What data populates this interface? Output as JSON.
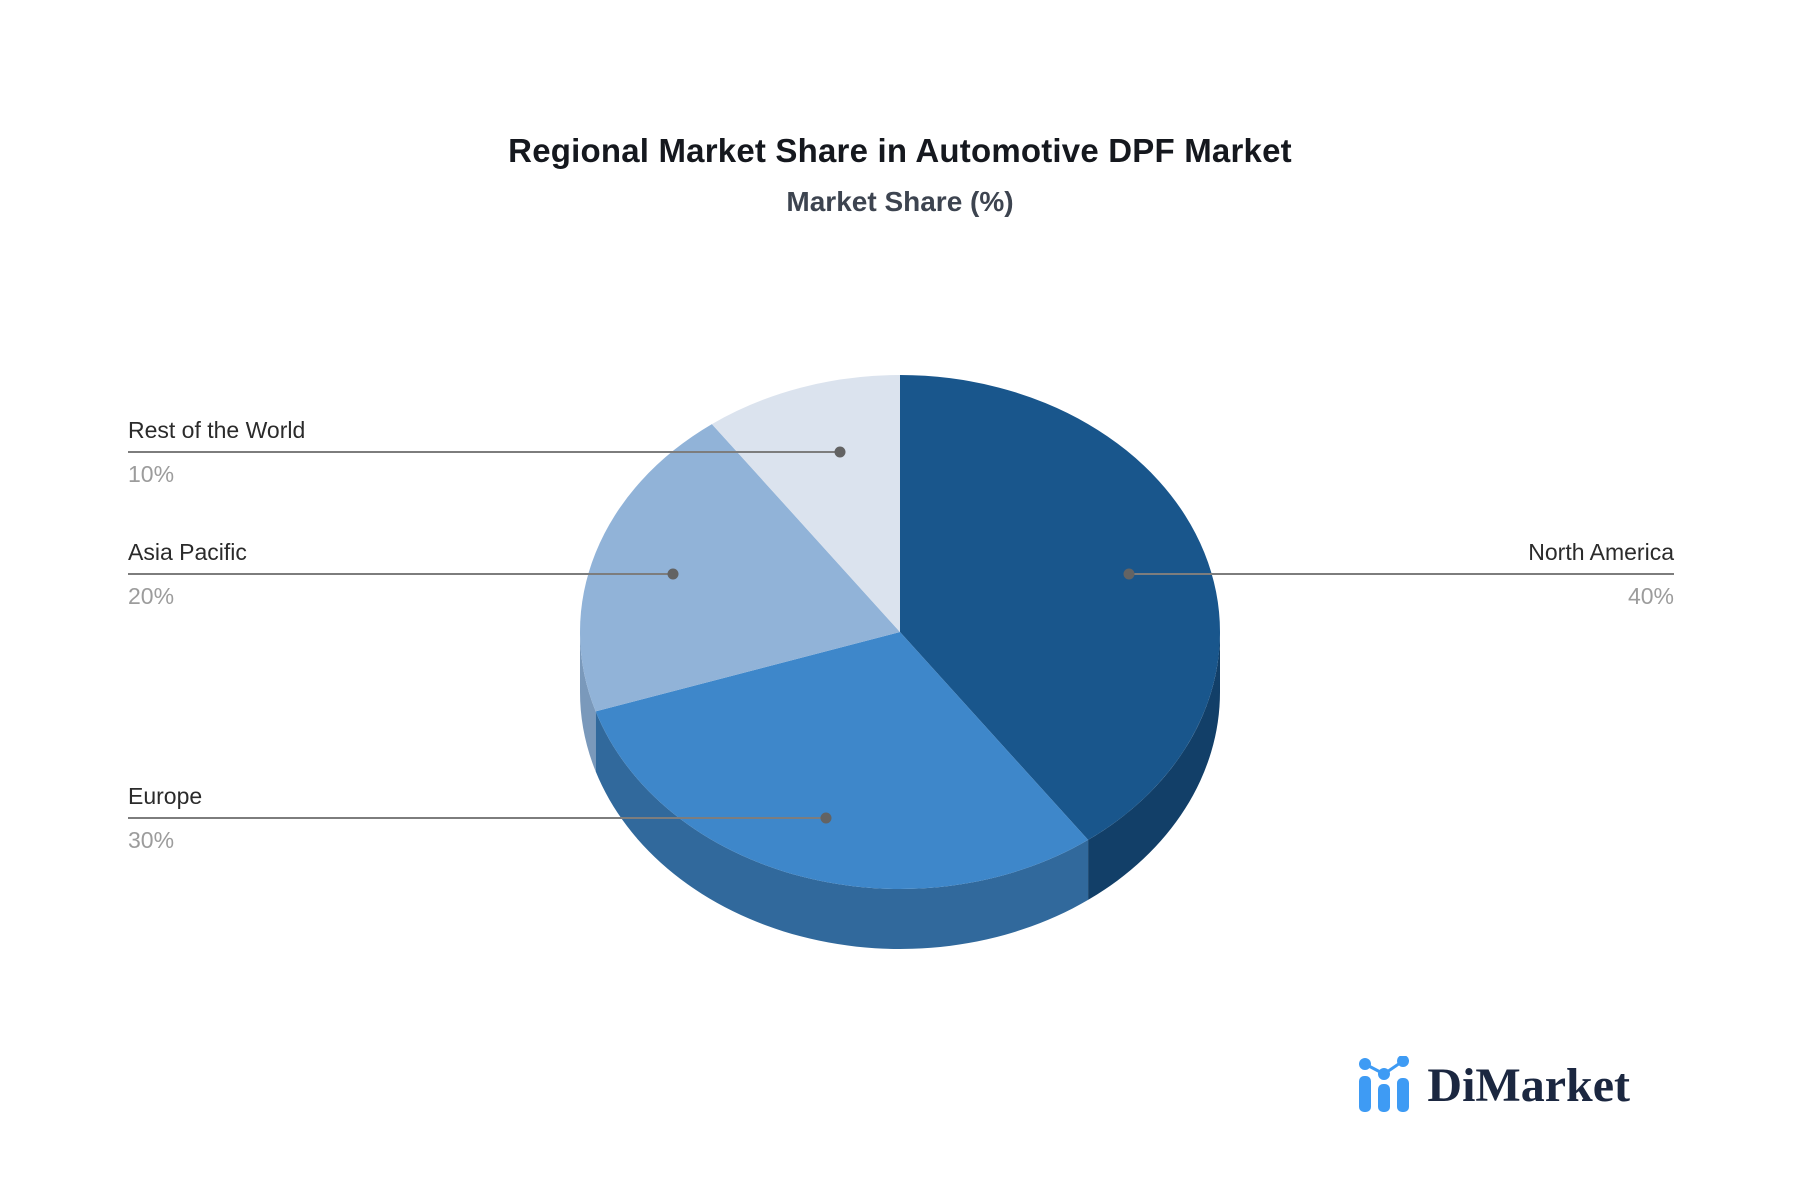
{
  "chart_data": {
    "type": "pie",
    "style": "3d",
    "title": "Regional Market Share in Automotive DPF Market",
    "subtitle": "Market Share (%)",
    "unit": "%",
    "start_angle": "12-oclock",
    "direction": "clockwise",
    "legend_position": "none",
    "labelling": "leader-lines",
    "slices": [
      {
        "label": "North America",
        "value": 40,
        "pct_label": "40%",
        "color": "#19568C",
        "side_color": "#123F68",
        "label_side": "right"
      },
      {
        "label": "Europe",
        "value": 30,
        "pct_label": "30%",
        "color": "#3E87CA",
        "side_color": "#31699C",
        "label_side": "left"
      },
      {
        "label": "Asia Pacific",
        "value": 20,
        "pct_label": "20%",
        "color": "#91B3D8",
        "side_color": "#7A99BB",
        "label_side": "left"
      },
      {
        "label": "Rest of the World",
        "value": 10,
        "pct_label": "10%",
        "color": "#DBE3EE",
        "side_color": "#B8C3D6",
        "label_side": "left"
      }
    ]
  },
  "logo": {
    "text": "DiMarket",
    "icon": "bar-chart-trend-icon",
    "icon_color": "#3E9BF4",
    "text_color": "#1B2740"
  },
  "colors": {
    "background": "#FFFFFF",
    "title": "#15181E",
    "subtitle": "#3D4450",
    "label_text": "#2B2B2B",
    "pct_text": "#9C9C9C",
    "leader_line": "#7D7D7D",
    "leader_dot": "#636363"
  }
}
